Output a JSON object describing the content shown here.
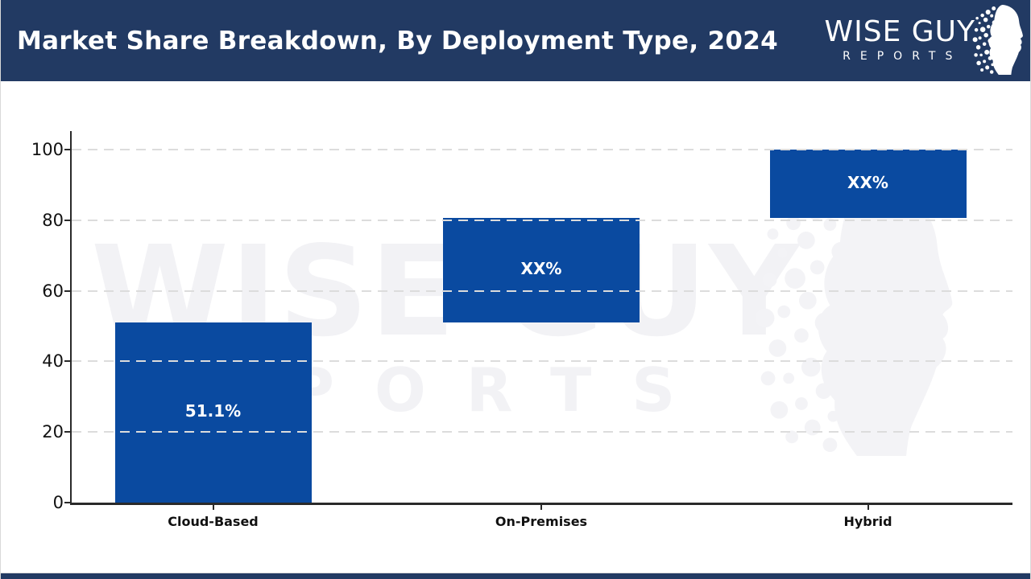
{
  "header": {
    "title": "Market Share Breakdown, By Deployment Type, 2024",
    "logo_line1": "WISE GUY",
    "logo_line2": "REPORTS"
  },
  "watermark": {
    "line1": "WISE GUY",
    "line2": "REPORTS"
  },
  "chart_data": {
    "type": "bar",
    "subtype": "floating-waterfall",
    "title": "Market Share Breakdown, By Deployment Type, 2024",
    "categories": [
      "Cloud-Based",
      "On-Premises",
      "Hybrid"
    ],
    "segments": [
      {
        "category": "Cloud-Based",
        "start": 0,
        "end": 51.1,
        "label": "51.1%"
      },
      {
        "category": "On-Premises",
        "start": 51.1,
        "end": 80.6,
        "label": "XX%"
      },
      {
        "category": "Hybrid",
        "start": 80.6,
        "end": 100,
        "label": "XX%"
      }
    ],
    "yticks": [
      0,
      20,
      40,
      60,
      80,
      100
    ],
    "ylim": [
      0,
      105
    ],
    "xlabel": "",
    "ylabel": "",
    "grid": "horizontal-dashed",
    "legend": "none",
    "bar_color": "#0a4aa0",
    "bar_label_color": "#ffffff",
    "axis_color": "#2a2a2a",
    "grid_color": "#dcdcdc"
  },
  "colors": {
    "header_bg": "#223a63",
    "footer_bg": "#223a63",
    "watermark": "#f2f2f5",
    "page_bg": "#ffffff"
  }
}
